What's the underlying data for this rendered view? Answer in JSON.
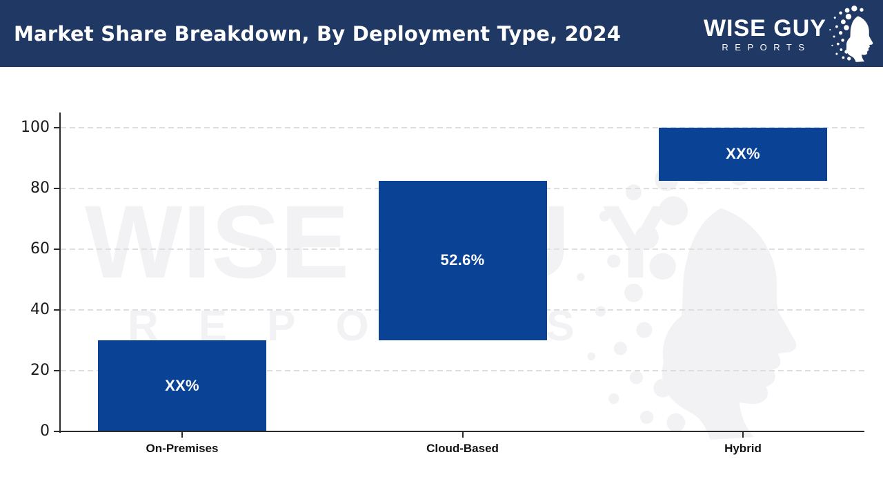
{
  "header": {
    "title": "Market Share Breakdown, By Deployment Type, 2024",
    "logo": {
      "line1": "WISE GUY",
      "line2": "REPORTS"
    }
  },
  "watermark": {
    "line1": "WISE GUY",
    "line2": "REPORTS"
  },
  "colors": {
    "page_bg": "#ffffff",
    "header_bg": "#1f3864",
    "title_text": "#ffffff",
    "bar_fill": "#0a4296",
    "bar_label_text": "#ffffff",
    "axis_line": "#2a2a2a",
    "tick_label": "#1a1a1a",
    "gridline": "#dedede",
    "watermark": "#f2f2f4"
  },
  "chart_data": {
    "type": "bar",
    "subtype": "waterfall",
    "title": "Market Share Breakdown, By Deployment Type, 2024",
    "categories": [
      "On-Premises",
      "Cloud-Based",
      "Hybrid"
    ],
    "segments": [
      {
        "category": "On-Premises",
        "start": 0,
        "end": 30,
        "label": "XX%"
      },
      {
        "category": "Cloud-Based",
        "start": 30,
        "end": 82.6,
        "label": "52.6%"
      },
      {
        "category": "Hybrid",
        "start": 82.6,
        "end": 100,
        "label": "XX%"
      }
    ],
    "y_ticks": [
      0,
      20,
      40,
      60,
      80,
      100
    ],
    "ylim": [
      0,
      105
    ],
    "xlabel": "",
    "ylabel": "",
    "grid": "horizontal-dashed",
    "legend": "none"
  }
}
